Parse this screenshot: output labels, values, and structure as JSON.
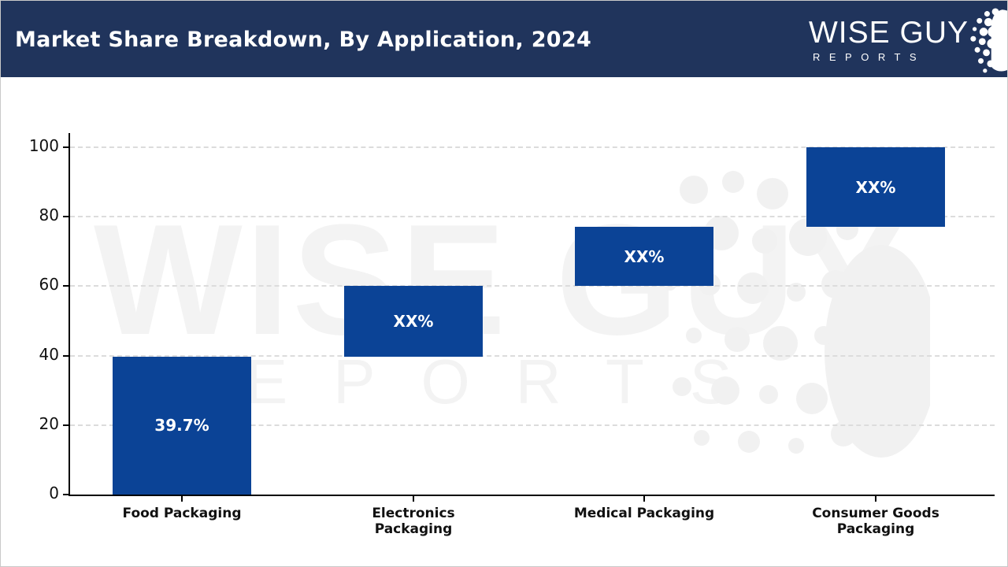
{
  "header": {
    "title": "Market Share Breakdown, By Application, 2024",
    "bg_color": "#20345c",
    "logo": {
      "line1": "WISE GUY",
      "line2": "REPORTS"
    }
  },
  "watermark": {
    "line1": "WISE GUY",
    "line2": "REPORTS"
  },
  "chart_data": {
    "type": "bar",
    "subtype": "waterfall",
    "title": "Market Share Breakdown, By Application, 2024",
    "categories": [
      "Food Packaging",
      "Electronics Packaging",
      "Medical Packaging",
      "Consumer Goods Packaging"
    ],
    "values": [
      39.7,
      20.3,
      17.0,
      23.0
    ],
    "segments": [
      {
        "category": "Food Packaging",
        "category_lines": [
          "Food Packaging"
        ],
        "start": 0,
        "end": 39.7,
        "label": "39.7%"
      },
      {
        "category": "Electronics Packaging",
        "category_lines": [
          "Electronics",
          "Packaging"
        ],
        "start": 39.7,
        "end": 60.0,
        "label": "XX%"
      },
      {
        "category": "Medical Packaging",
        "category_lines": [
          "Medical Packaging"
        ],
        "start": 60.0,
        "end": 77.0,
        "label": "XX%"
      },
      {
        "category": "Consumer Goods Packaging",
        "category_lines": [
          "Consumer Goods",
          "Packaging"
        ],
        "start": 77.0,
        "end": 100.0,
        "label": "XX%"
      }
    ],
    "yticks": [
      0,
      20,
      40,
      60,
      80,
      100
    ],
    "ylim": [
      0,
      100
    ],
    "xlabel": "",
    "ylabel": "",
    "bar_color": "#0b4396",
    "grid": "dashed-horizontal",
    "legend": "none"
  }
}
